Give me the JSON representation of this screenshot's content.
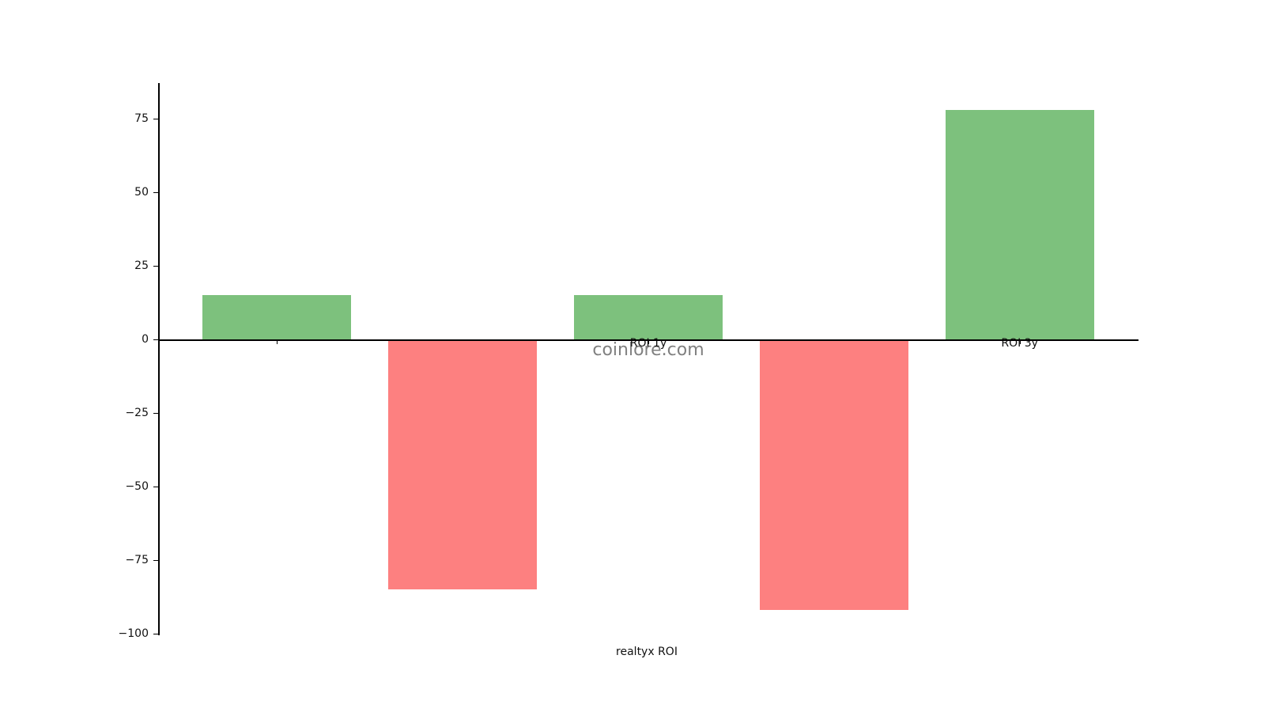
{
  "watermark": "coinlore.com",
  "chart_data": {
    "type": "bar",
    "title": "",
    "xlabel": "realtyx ROI",
    "ylabel": "",
    "x": [
      0,
      1,
      2,
      3,
      4
    ],
    "values": [
      15,
      -85,
      15,
      -92,
      78
    ],
    "bar_width": 0.8,
    "xlim": [
      -0.64,
      4.64
    ],
    "ylim": [
      -100.6,
      87.2
    ],
    "yticks": [
      {
        "value": 75,
        "label": "75"
      },
      {
        "value": 50,
        "label": "50"
      },
      {
        "value": 25,
        "label": "25"
      },
      {
        "value": 0,
        "label": "0"
      },
      {
        "value": -25,
        "label": "−25"
      },
      {
        "value": -50,
        "label": "−50"
      },
      {
        "value": -75,
        "label": "−75"
      },
      {
        "value": -100,
        "label": "−100"
      }
    ],
    "xticks": [
      {
        "x": 0,
        "label": ""
      },
      {
        "x": 2,
        "label": "ROI 1y"
      },
      {
        "x": 4,
        "label": "ROI 3y"
      }
    ],
    "grid": false,
    "legend": false,
    "colors": {
      "positive": "#7dc17d",
      "negative": "#fd8080",
      "axis": "#000000",
      "tick_text": "#111111",
      "watermark": "#808080"
    }
  }
}
